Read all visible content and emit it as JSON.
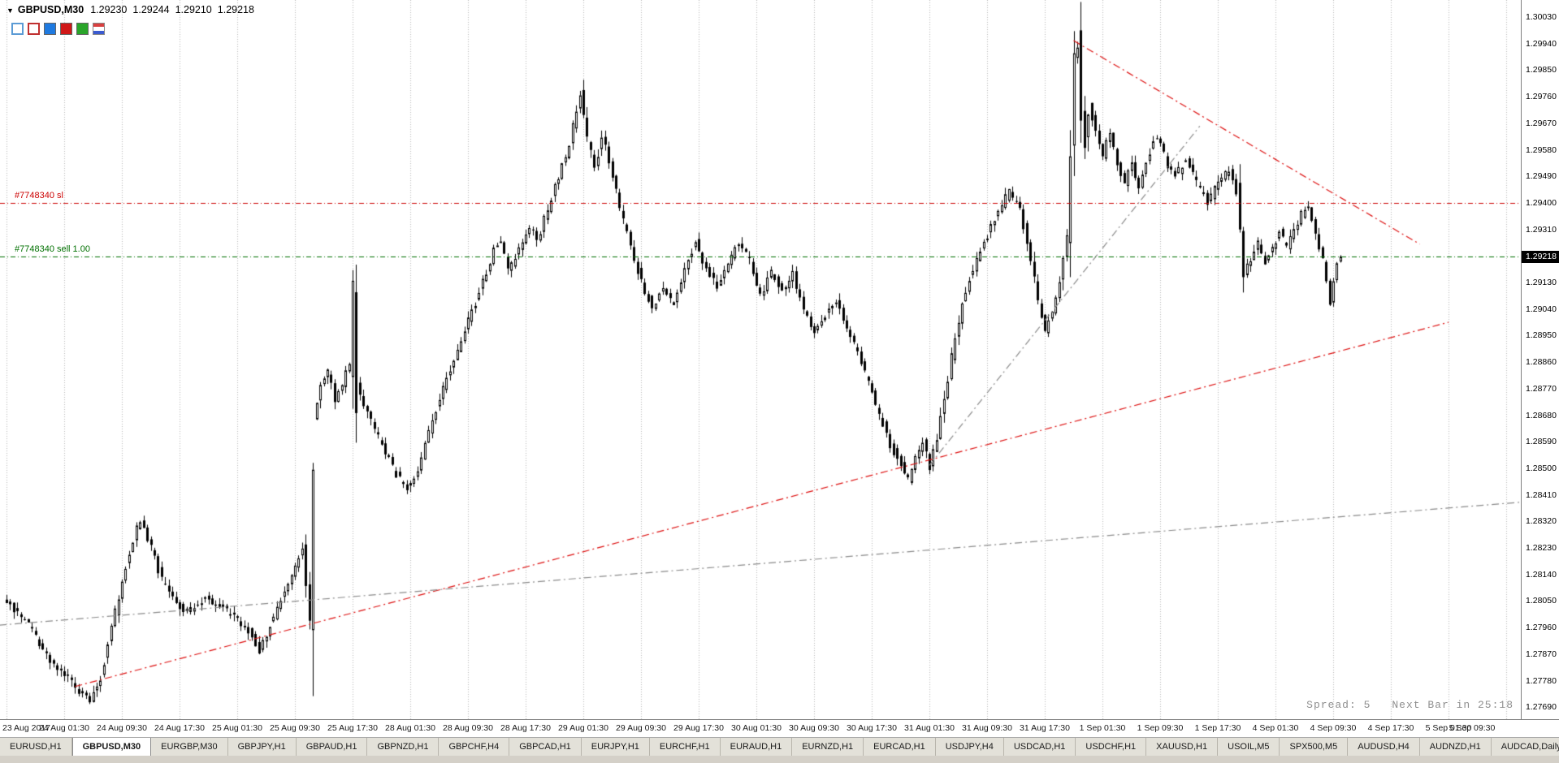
{
  "chart_header": {
    "collapse_icon": "▼",
    "symbol_period": "GBPUSD,M30",
    "open": "1.29230",
    "high": "1.29244",
    "low": "1.29210",
    "close": "1.29218"
  },
  "toolbar": {
    "swatches": [
      {
        "name": "swatch-blue-outline-icon",
        "style": "outline",
        "color": "#5b9bd5"
      },
      {
        "name": "swatch-red-outline-icon",
        "style": "outline",
        "color": "#c03030"
      },
      {
        "name": "swatch-blue-icon",
        "style": "fill",
        "color": "#1f7ae0"
      },
      {
        "name": "swatch-red-icon",
        "style": "fill",
        "color": "#d01818"
      },
      {
        "name": "swatch-green-icon",
        "style": "fill",
        "color": "#2aa52a"
      },
      {
        "name": "swatch-striped-icon",
        "style": "stripes",
        "colors": [
          "#d84040",
          "#ffffff",
          "#3b5bd0"
        ]
      }
    ]
  },
  "order_lines": [
    {
      "id": "stop-loss-line",
      "label": "#7748340 sl",
      "price": 1.294,
      "color": "#cc0000"
    },
    {
      "id": "position-line",
      "label": "#7748340 sell 1.00",
      "price": 1.29218,
      "color": "#007000"
    }
  ],
  "price_axis": {
    "top_price": 1.3003,
    "bottom_price": 1.2769,
    "step": 0.0009,
    "labels": [
      "1.30030",
      "1.29940",
      "1.29850",
      "1.29760",
      "1.29670",
      "1.29580",
      "1.29490",
      "1.29400",
      "1.29310",
      "1.29130",
      "1.29040",
      "1.28950",
      "1.28860",
      "1.28770",
      "1.28680",
      "1.28590",
      "1.28500",
      "1.28410",
      "1.28320",
      "1.28230",
      "1.28140",
      "1.28050",
      "1.27960",
      "1.27870",
      "1.27780",
      "1.27690"
    ],
    "current_price_tag": {
      "value": "1.29218",
      "bg": "#000000",
      "fg": "#ffffff"
    }
  },
  "time_axis": {
    "labels": [
      "23 Aug 2017",
      "24 Aug 01:30",
      "24 Aug 09:30",
      "24 Aug 17:30",
      "25 Aug 01:30",
      "25 Aug 09:30",
      "25 Aug 17:30",
      "28 Aug 01:30",
      "28 Aug 09:30",
      "28 Aug 17:30",
      "29 Aug 01:30",
      "29 Aug 09:30",
      "29 Aug 17:30",
      "30 Aug 01:30",
      "30 Aug 09:30",
      "30 Aug 17:30",
      "31 Aug 01:30",
      "31 Aug 09:30",
      "31 Aug 17:30",
      "1 Sep 01:30",
      "1 Sep 09:30",
      "1 Sep 17:30",
      "4 Sep 01:30",
      "4 Sep 09:30",
      "4 Sep 17:30",
      "5 Sep 01:30",
      "5 Sep 09:30"
    ]
  },
  "status": {
    "spread": "Spread: 5",
    "next_bar": "Next Bar in 25:18"
  },
  "tabs": [
    {
      "label": "EURUSD,H1",
      "active": false
    },
    {
      "label": "GBPUSD,M30",
      "active": true
    },
    {
      "label": "EURGBP,M30",
      "active": false
    },
    {
      "label": "GBPJPY,H1",
      "active": false
    },
    {
      "label": "GBPAUD,H1",
      "active": false
    },
    {
      "label": "GBPNZD,H1",
      "active": false
    },
    {
      "label": "GBPCHF,H4",
      "active": false
    },
    {
      "label": "GBPCAD,H1",
      "active": false
    },
    {
      "label": "EURJPY,H1",
      "active": false
    },
    {
      "label": "EURCHF,H1",
      "active": false
    },
    {
      "label": "EURAUD,H1",
      "active": false
    },
    {
      "label": "EURNZD,H1",
      "active": false
    },
    {
      "label": "EURCAD,H1",
      "active": false
    },
    {
      "label": "USDJPY,H4",
      "active": false
    },
    {
      "label": "USDCAD,H1",
      "active": false
    },
    {
      "label": "USDCHF,H1",
      "active": false
    },
    {
      "label": "XAUUSD,H1",
      "active": false
    },
    {
      "label": "USOIL,M5",
      "active": false
    },
    {
      "label": "SPX500,M5",
      "active": false
    },
    {
      "label": "AUDUSD,H4",
      "active": false
    },
    {
      "label": "AUDNZD,H1",
      "active": false
    },
    {
      "label": "AUDCAD,Daily",
      "active": false
    }
  ],
  "chart_data": {
    "type": "candlestick",
    "symbol": "GBPUSD",
    "timeframe": "M30",
    "x_range": {
      "first_label": "23 Aug 2017",
      "last_label": "5 Sep 09:30",
      "bars_visible": 371,
      "bars_per_label": 16
    },
    "y_range": [
      1.2769,
      1.3003
    ],
    "grid": {
      "vertical_separators": true,
      "horizontal": false
    },
    "candle_colors": {
      "up_fill": "#ffffff",
      "down_fill": "#000000",
      "outline": "#000000"
    },
    "price_path_anchors": [
      [
        0,
        1.2806
      ],
      [
        4,
        1.2801
      ],
      [
        8,
        1.2795
      ],
      [
        12,
        1.2786
      ],
      [
        16,
        1.2781
      ],
      [
        20,
        1.2776
      ],
      [
        24,
        1.2771
      ],
      [
        27,
        1.2779
      ],
      [
        30,
        1.2796
      ],
      [
        33,
        1.2812
      ],
      [
        36,
        1.2826
      ],
      [
        38,
        1.2833
      ],
      [
        41,
        1.2823
      ],
      [
        44,
        1.2812
      ],
      [
        48,
        1.2804
      ],
      [
        52,
        1.2801
      ],
      [
        56,
        1.2807
      ],
      [
        60,
        1.2803
      ],
      [
        64,
        1.28
      ],
      [
        68,
        1.2795
      ],
      [
        71,
        1.2788
      ],
      [
        74,
        1.2797
      ],
      [
        77,
        1.2806
      ],
      [
        80,
        1.2814
      ],
      [
        83,
        1.2824
      ],
      [
        85,
        1.2797
      ],
      [
        86,
        1.2865
      ],
      [
        88,
        1.2878
      ],
      [
        90,
        1.2883
      ],
      [
        92,
        1.2872
      ],
      [
        94,
        1.2878
      ],
      [
        96,
        1.2886
      ],
      [
        97,
        1.2912
      ],
      [
        98,
        1.2878
      ],
      [
        100,
        1.2872
      ],
      [
        103,
        1.2863
      ],
      [
        106,
        1.2855
      ],
      [
        109,
        1.2848
      ],
      [
        112,
        1.2843
      ],
      [
        115,
        1.285
      ],
      [
        118,
        1.2862
      ],
      [
        121,
        1.2874
      ],
      [
        124,
        1.2884
      ],
      [
        127,
        1.2894
      ],
      [
        130,
        1.2903
      ],
      [
        133,
        1.2913
      ],
      [
        136,
        1.2924
      ],
      [
        138,
        1.2928
      ],
      [
        140,
        1.2917
      ],
      [
        143,
        1.2924
      ],
      [
        146,
        1.2932
      ],
      [
        148,
        1.2927
      ],
      [
        151,
        1.2938
      ],
      [
        154,
        1.2949
      ],
      [
        157,
        1.296
      ],
      [
        159,
        1.2972
      ],
      [
        160,
        1.2977
      ],
      [
        162,
        1.2962
      ],
      [
        164,
        1.2951
      ],
      [
        166,
        1.2963
      ],
      [
        168,
        1.2954
      ],
      [
        171,
        1.2938
      ],
      [
        174,
        1.2925
      ],
      [
        177,
        1.2913
      ],
      [
        180,
        1.2905
      ],
      [
        183,
        1.2911
      ],
      [
        186,
        1.2905
      ],
      [
        189,
        1.2918
      ],
      [
        192,
        1.2927
      ],
      [
        195,
        1.2917
      ],
      [
        198,
        1.2912
      ],
      [
        201,
        1.2919
      ],
      [
        204,
        1.2927
      ],
      [
        207,
        1.292
      ],
      [
        210,
        1.2908
      ],
      [
        213,
        1.2917
      ],
      [
        216,
        1.291
      ],
      [
        219,
        1.2916
      ],
      [
        222,
        1.2903
      ],
      [
        225,
        1.2896
      ],
      [
        228,
        1.2902
      ],
      [
        231,
        1.2907
      ],
      [
        234,
        1.2898
      ],
      [
        237,
        1.2889
      ],
      [
        240,
        1.2879
      ],
      [
        243,
        1.2868
      ],
      [
        246,
        1.2858
      ],
      [
        249,
        1.2851
      ],
      [
        251,
        1.2846
      ],
      [
        253,
        1.2854
      ],
      [
        255,
        1.2859
      ],
      [
        257,
        1.285
      ],
      [
        259,
        1.2861
      ],
      [
        261,
        1.2874
      ],
      [
        263,
        1.2888
      ],
      [
        265,
        1.29
      ],
      [
        267,
        1.2911
      ],
      [
        270,
        1.2921
      ],
      [
        273,
        1.2929
      ],
      [
        276,
        1.2937
      ],
      [
        279,
        1.2944
      ],
      [
        282,
        1.2937
      ],
      [
        285,
        1.2921
      ],
      [
        287,
        1.2906
      ],
      [
        289,
        1.2897
      ],
      [
        291,
        1.2903
      ],
      [
        293,
        1.2912
      ],
      [
        295,
        1.2928
      ],
      [
        296,
        1.2952
      ],
      [
        297,
        1.2988
      ],
      [
        298,
        1.2994
      ],
      [
        299,
        1.2972
      ],
      [
        300,
        1.296
      ],
      [
        301,
        1.2973
      ],
      [
        303,
        1.2964
      ],
      [
        305,
        1.2956
      ],
      [
        307,
        1.2964
      ],
      [
        309,
        1.2953
      ],
      [
        311,
        1.2947
      ],
      [
        313,
        1.2953
      ],
      [
        315,
        1.2945
      ],
      [
        317,
        1.2953
      ],
      [
        319,
        1.2962
      ],
      [
        321,
        1.296
      ],
      [
        323,
        1.2953
      ],
      [
        325,
        1.2949
      ],
      [
        328,
        1.2955
      ],
      [
        331,
        1.2947
      ],
      [
        334,
        1.294
      ],
      [
        337,
        1.2947
      ],
      [
        340,
        1.2951
      ],
      [
        342,
        1.2944
      ],
      [
        344,
        1.2916
      ],
      [
        346,
        1.2921
      ],
      [
        348,
        1.2926
      ],
      [
        350,
        1.292
      ],
      [
        352,
        1.2925
      ],
      [
        354,
        1.293
      ],
      [
        356,
        1.2925
      ],
      [
        358,
        1.2931
      ],
      [
        360,
        1.2936
      ],
      [
        362,
        1.2939
      ],
      [
        364,
        1.2929
      ],
      [
        366,
        1.2921
      ],
      [
        368,
        1.2907
      ],
      [
        370,
        1.2919
      ],
      [
        371,
        1.2922
      ]
    ],
    "trendlines": [
      {
        "name": "descending-resistance-red",
        "color": "#dd1111",
        "style": "dash-dot",
        "from": {
          "bar": 296,
          "price": 1.2995
        },
        "to": {
          "bar": 392,
          "price": 1.2926
        }
      },
      {
        "name": "ascending-support-red",
        "color": "#dd1111",
        "style": "dash-dot",
        "from": {
          "bar": 19,
          "price": 1.2776
        },
        "to": {
          "bar": 400,
          "price": 1.28995
        }
      },
      {
        "name": "ascending-gray-long",
        "color": "#8a8a8a",
        "style": "dash-dot",
        "from": {
          "bar": -2,
          "price": 1.27968
        },
        "to": {
          "bar": 420,
          "price": 1.28385
        }
      },
      {
        "name": "ascending-gray-steep",
        "color": "#8a8a8a",
        "style": "dash-dot",
        "from": {
          "bar": 256,
          "price": 1.2851
        },
        "to": {
          "bar": 331,
          "price": 1.2966
        }
      }
    ]
  }
}
